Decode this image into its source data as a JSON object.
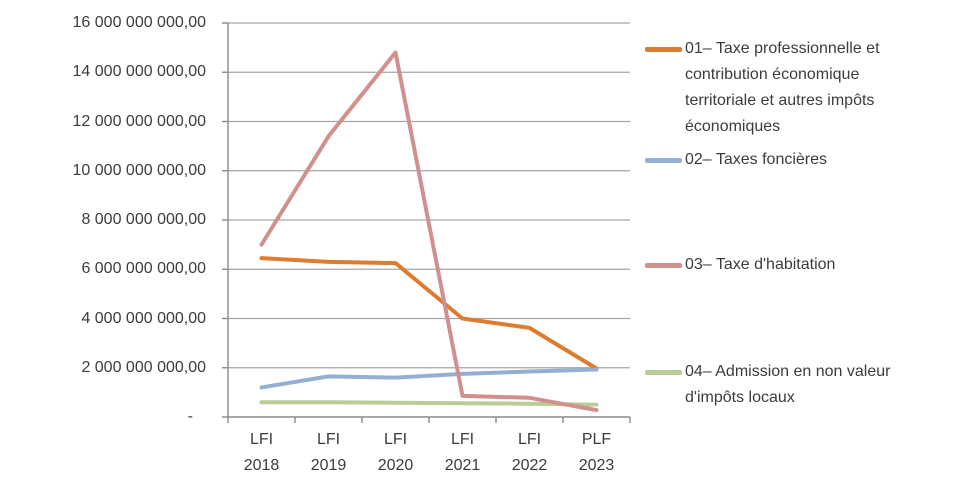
{
  "chart_data": {
    "type": "line",
    "title": "",
    "xlabel": "",
    "ylabel": "",
    "categories": [
      "LFI\n2018",
      "LFI\n2019",
      "LFI\n2020",
      "LFI\n2021",
      "LFI\n2022",
      "PLF\n2023"
    ],
    "y_tick_labels": [
      "16 000 000 000,00",
      "14 000 000 000,00",
      "12 000 000 000,00",
      "10 000 000 000,00",
      "8 000 000 000,00",
      "6 000 000 000,00",
      "4 000 000 000,00",
      "2 000 000 000,00",
      "-"
    ],
    "ylim": [
      0,
      16000000000
    ],
    "y_step": 2000000000,
    "grid": true,
    "legend_position": "right",
    "series": [
      {
        "name": "01– Taxe professionnelle et contribution économique territoriale et autres impôts économiques",
        "color": "#DD7B2E",
        "values": [
          6450000000,
          6300000000,
          6250000000,
          4000000000,
          3620000000,
          1970000000
        ]
      },
      {
        "name": "02– Taxes foncières",
        "color": "#95AFD3",
        "values": [
          1200000000,
          1650000000,
          1600000000,
          1750000000,
          1850000000,
          1930000000
        ]
      },
      {
        "name": "03– Taxe d'habitation",
        "color": "#D0908E",
        "values": [
          7000000000,
          11400000000,
          14800000000,
          860000000,
          780000000,
          280000000
        ]
      },
      {
        "name": "04– Admission en non valeur d'impôts locaux",
        "color": "#B9CC95",
        "values": [
          600000000,
          600000000,
          580000000,
          560000000,
          540000000,
          500000000
        ]
      }
    ]
  },
  "colors": {
    "grid": "#A6A6A6",
    "axis": "#8A8A8A",
    "text": "#3C3C3C",
    "background": "#FFFFFF"
  }
}
